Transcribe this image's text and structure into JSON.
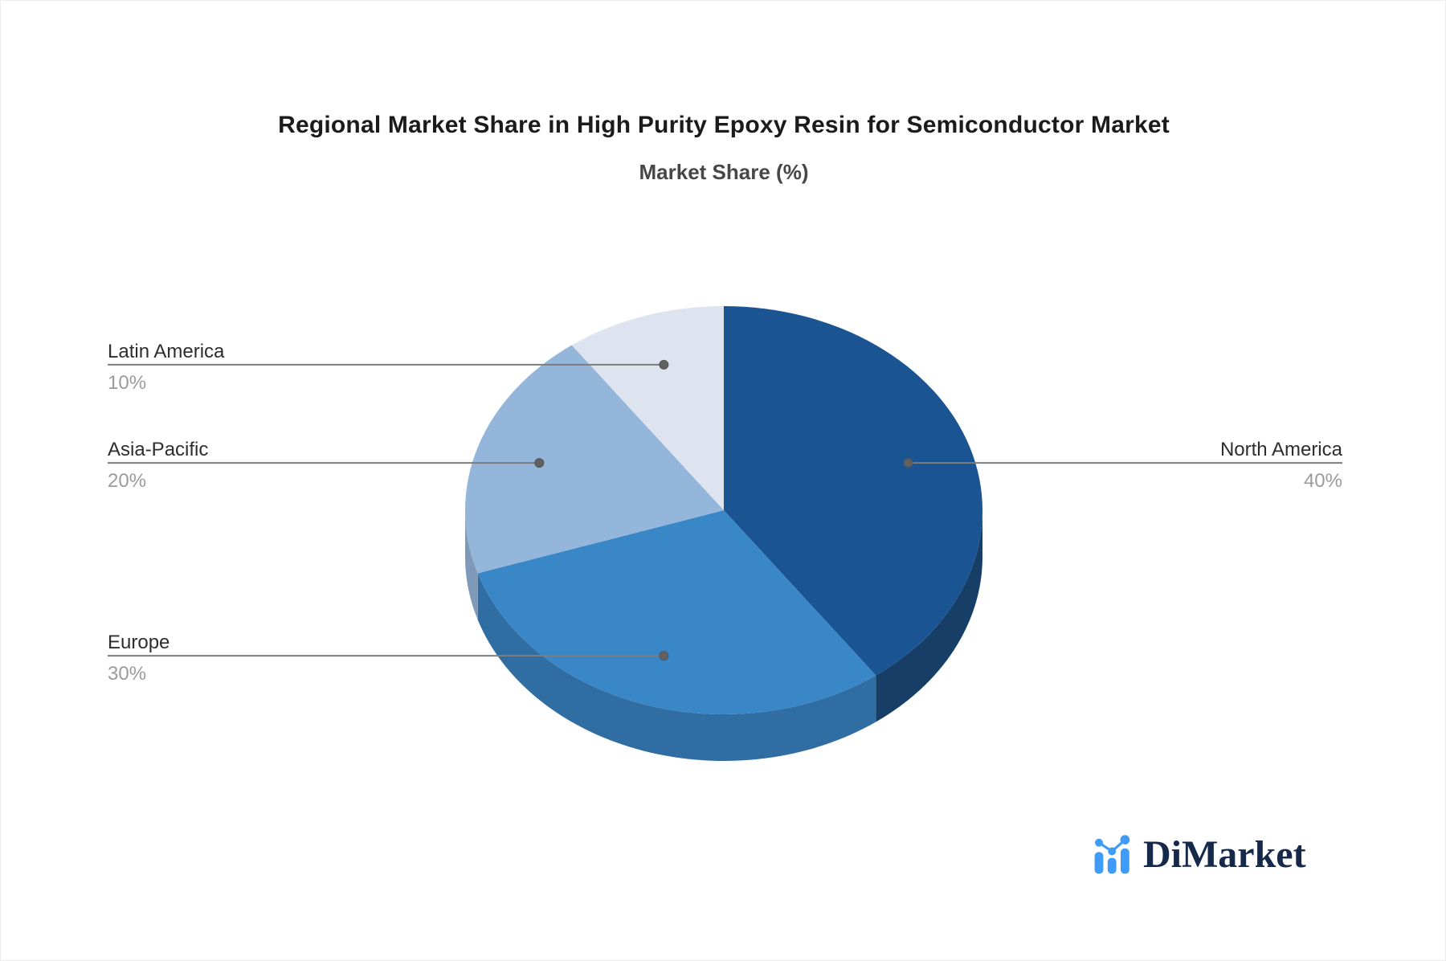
{
  "title": "Regional Market Share in High Purity Epoxy Resin for Semiconductor Market",
  "subtitle": "Market Share (%)",
  "logo": {
    "brand": "DiMarket",
    "icon": "bar-line-chart-logo-icon",
    "icon_color": "#3f9bf8",
    "text_color": "#17294a"
  },
  "chart_data": {
    "type": "pie",
    "style": "3d",
    "title": "Regional Market Share in High Purity Epoxy Resin for Semiconductor Market",
    "subtitle": "Market Share (%)",
    "unit": "%",
    "direction": "clockwise",
    "start_angle": "12-oclock",
    "legend_position": "callout-labels",
    "categories": [
      "North America",
      "Europe",
      "Asia-Pacific",
      "Latin America"
    ],
    "values": [
      40,
      30,
      20,
      10
    ],
    "slices": [
      {
        "label": "North America",
        "value": 40,
        "value_text": "40%",
        "color": "#1b5492",
        "side_color": "#163e66"
      },
      {
        "label": "Europe",
        "value": 30,
        "value_text": "30%",
        "color": "#3a87c8",
        "side_color": "#2f6da3"
      },
      {
        "label": "Asia-Pacific",
        "value": 20,
        "value_text": "20%",
        "color": "#94b6da",
        "side_color": "#7f99b8"
      },
      {
        "label": "Latin America",
        "value": 10,
        "value_text": "10%",
        "color": "#dde4ef",
        "side_color": "#bac4d3"
      }
    ],
    "label_color": "#2d2d2d",
    "value_color": "#9b9b9b",
    "line_color": "#7d7d7d"
  }
}
